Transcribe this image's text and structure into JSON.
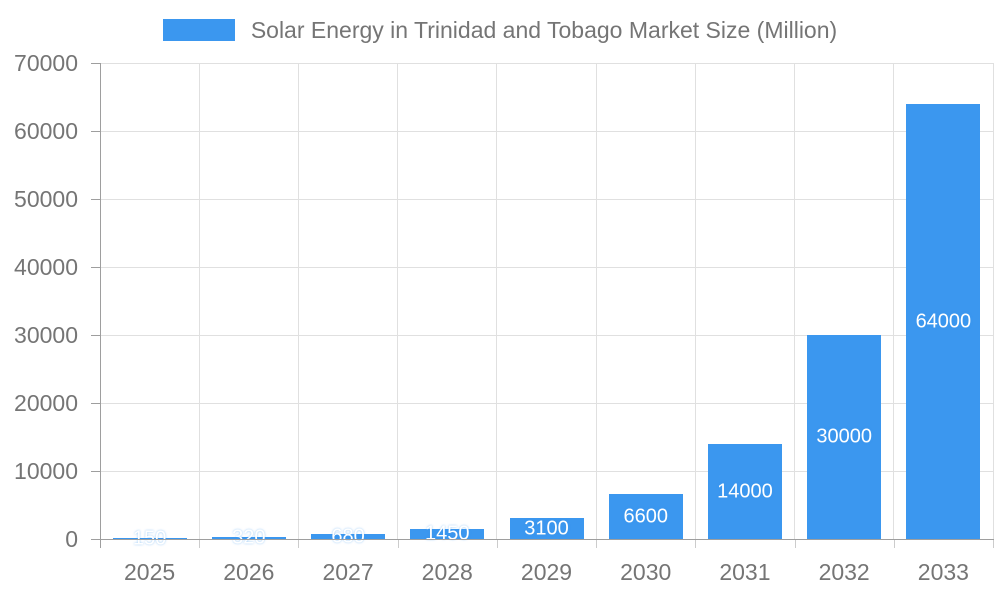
{
  "legend": {
    "label": "Solar Energy in Trinidad and Tobago Market Size (Million)"
  },
  "colors": {
    "bar": "#3B97EF",
    "grid": "#E0E0E0",
    "axis": "#9E9E9E",
    "minor_tick": "#CCCCCC",
    "tick_text": "#757575",
    "bar_label_text": "#FFFFFF",
    "background": "#FFFFFF"
  },
  "chart_data": {
    "type": "bar",
    "title": "Solar Energy in Trinidad and Tobago Market Size (Million)",
    "categories": [
      "2025",
      "2026",
      "2027",
      "2028",
      "2029",
      "2030",
      "2031",
      "2032",
      "2033"
    ],
    "values": [
      150,
      320,
      680,
      1450,
      3100,
      6600,
      14000,
      30000,
      64000
    ],
    "bar_value_labels": [
      "150",
      "320",
      "680",
      "1450",
      "3100",
      "6600",
      "14000",
      "30000",
      "64000"
    ],
    "xlabel": "",
    "ylabel": "",
    "ylim": [
      0,
      70000
    ],
    "ytick_step": 10000,
    "ytick_labels": [
      "0",
      "10000",
      "20000",
      "30000",
      "40000",
      "50000",
      "60000",
      "70000"
    ],
    "grid": true,
    "legend_position": "top-center",
    "value_label_position": "inside-center"
  }
}
